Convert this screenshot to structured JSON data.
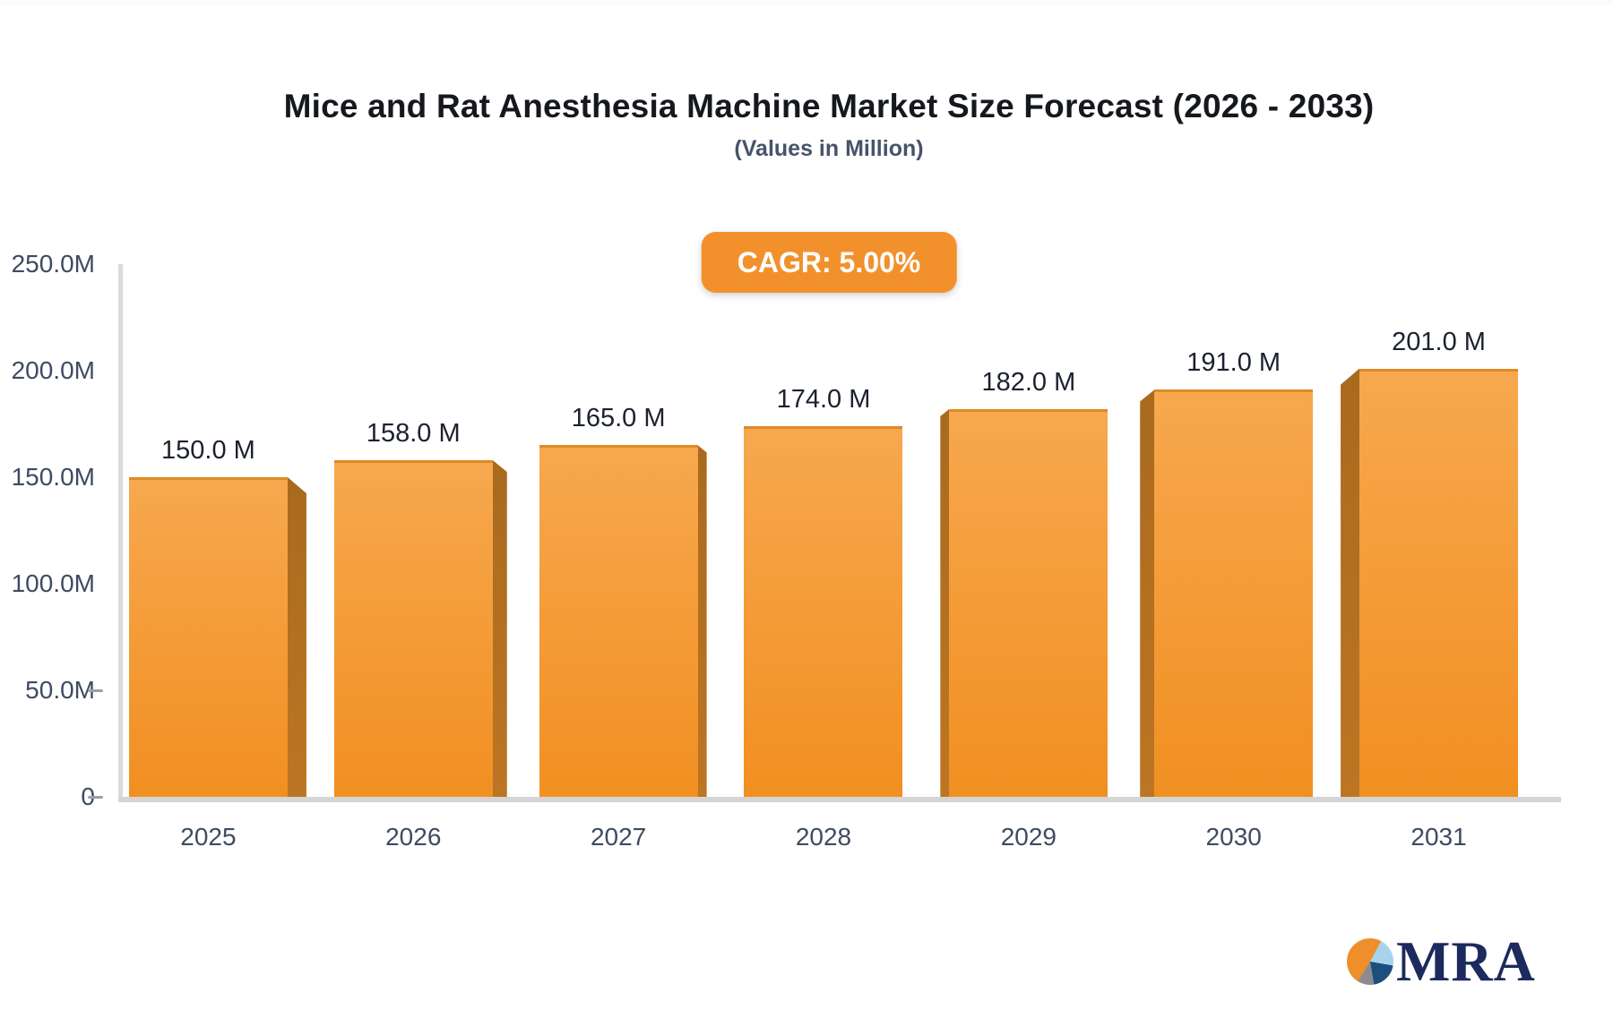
{
  "header": {
    "title": "Mice and Rat Anesthesia Machine Market Size Forecast (2026 - 2033)",
    "subtitle": "(Values in Million)"
  },
  "cagr_badge": {
    "label": "CAGR: 5.00%",
    "color": "#F2912C"
  },
  "chart_data": {
    "type": "bar",
    "title": "Mice and Rat Anesthesia Machine Market Size Forecast (2026 - 2033)",
    "subtitle": "(Values in Million)",
    "categories": [
      "2025",
      "2026",
      "2027",
      "2028",
      "2029",
      "2030",
      "2031"
    ],
    "values": [
      150,
      158,
      165,
      174,
      182,
      191,
      201
    ],
    "value_labels": [
      "150.0 M",
      "158.0 M",
      "165.0 M",
      "174.0 M",
      "182.0 M",
      "191.0 M",
      "201.0 M"
    ],
    "xlabel": "",
    "ylabel": "",
    "ylim": [
      0,
      250
    ],
    "yticks": [
      {
        "label": "250.0M",
        "value": 250,
        "tick": false
      },
      {
        "label": "200.0M",
        "value": 200,
        "tick": false
      },
      {
        "label": "150.0M",
        "value": 150,
        "tick": false
      },
      {
        "label": "100.0M",
        "value": 100,
        "tick": false
      },
      {
        "label": "50.0M",
        "value": 50,
        "tick": true
      },
      {
        "label": "0",
        "value": 0,
        "tick": true
      }
    ],
    "grid": false,
    "legend": false,
    "style": "3d-perspective-bars",
    "colors": {
      "bar_top": "#F7A84E",
      "bar_bottom": "#F18F21",
      "bar_edge": "#DF8A26",
      "bar_side_top": "#A96A1E",
      "bar_side_bottom": "#BC7523",
      "axis": "#D9DBDD",
      "tick": "#9AA1AB",
      "axis_label": "#3E4B61",
      "value_label": "#1B212E"
    }
  },
  "logo": {
    "text": "MRA",
    "pie_colors": {
      "orange": "#EE8F2B",
      "light_blue": "#A7D4EB",
      "dark_blue": "#1C4E7E",
      "gray": "#8C8C90"
    },
    "text_color": "#1C2A5E"
  }
}
